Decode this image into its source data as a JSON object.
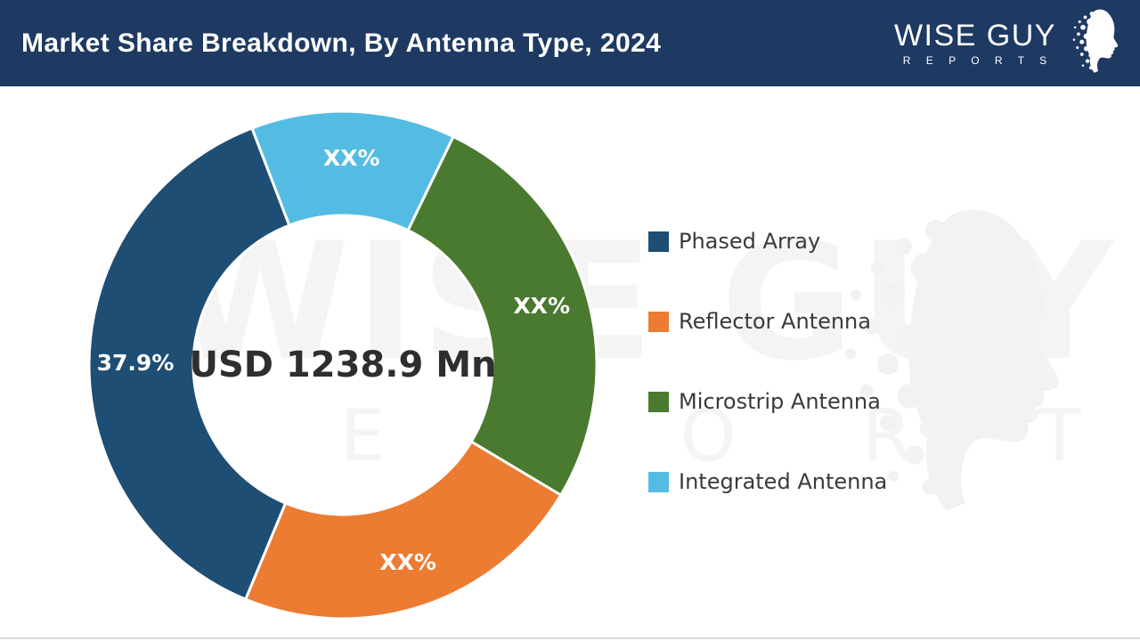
{
  "header": {
    "title": "Market Share Breakdown, By Antenna Type, 2024",
    "bg_color": "#1e3a63",
    "logo": {
      "line1": "WISE GUY",
      "line2": "R E P O R T S"
    }
  },
  "watermark": {
    "line1": "WISE GUY",
    "line2": "R E P O R T S"
  },
  "chart_data": {
    "type": "pie",
    "subtype": "donut",
    "title": "Market Share Breakdown, By Antenna Type, 2024",
    "center_text": "USD 1238.9 Mn",
    "start_angle_deg": -21,
    "direction": "clockwise",
    "segments": [
      {
        "name": "Integrated Antenna",
        "label": "XX%",
        "value_pct": 13.0,
        "color": "#54bce2"
      },
      {
        "name": "Microstrip Antenna",
        "label": "XX%",
        "value_pct": 26.4,
        "color": "#4a7a2f"
      },
      {
        "name": "Reflector Antenna",
        "label": "XX%",
        "value_pct": 22.7,
        "color": "#ec7c32"
      },
      {
        "name": "Phased Array",
        "label": "37.9%",
        "value_pct": 37.9,
        "color": "#1f4e74"
      }
    ],
    "legend_position": "right",
    "gridlines": false
  },
  "legend": {
    "items": [
      {
        "label": "Phased Array",
        "color": "#1f4e74"
      },
      {
        "label": "Reflector Antenna",
        "color": "#ec7c32"
      },
      {
        "label": "Microstrip Antenna",
        "color": "#4a7a2f"
      },
      {
        "label": "Integrated Antenna",
        "color": "#54bce2"
      }
    ]
  },
  "colors": {
    "header_bg": "#1e3a63",
    "center_text": "#2e2e2e",
    "watermark": "#f4f4f4",
    "bottom_rule": "#d9d9d9"
  }
}
